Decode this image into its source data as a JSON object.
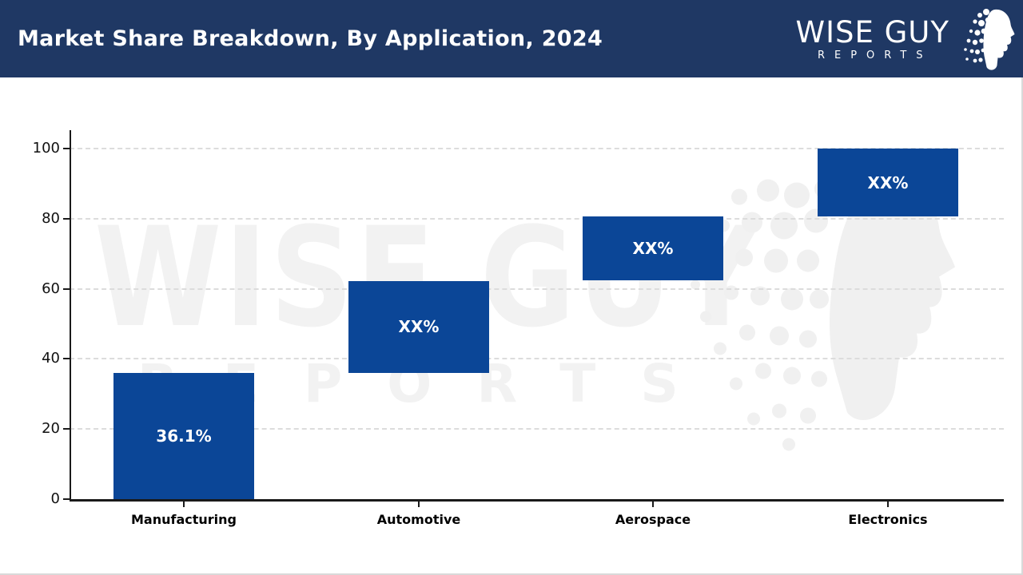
{
  "header": {
    "title": "Market Share Breakdown, By Application, 2024",
    "logo_line1": "WISE GUY",
    "logo_line2": "REPORTS"
  },
  "watermark": {
    "line1": "WISE GUY",
    "line2": "REPORTS"
  },
  "chart_data": {
    "type": "bar",
    "subtype": "waterfall",
    "title": "Market Share Breakdown, By Application, 2024",
    "categories": [
      "Manufacturing",
      "Automotive",
      "Aerospace",
      "Electronics"
    ],
    "segments": [
      {
        "category": "Manufacturing",
        "start": 0,
        "end": 36.1,
        "label": "36.1%"
      },
      {
        "category": "Automotive",
        "start": 36.1,
        "end": 62.3,
        "label": "XX%"
      },
      {
        "category": "Aerospace",
        "start": 62.3,
        "end": 80.6,
        "label": "XX%"
      },
      {
        "category": "Electronics",
        "start": 80.6,
        "end": 100,
        "label": "XX%"
      }
    ],
    "yticks": [
      0,
      20,
      40,
      60,
      80,
      100
    ],
    "ylim": [
      0,
      105
    ],
    "xlabel": "",
    "ylabel": "",
    "grid": "horizontal-dashed",
    "legend": "none",
    "bar_color": "#0b4697",
    "bar_label_color": "#ffffff"
  },
  "colors": {
    "header_bg": "#1f3864",
    "bar_blue": "#0b4697",
    "watermark_gray": "#f2f2f2",
    "gridline_gray": "#dcdcdc",
    "axis_black": "#1a1a1a"
  }
}
